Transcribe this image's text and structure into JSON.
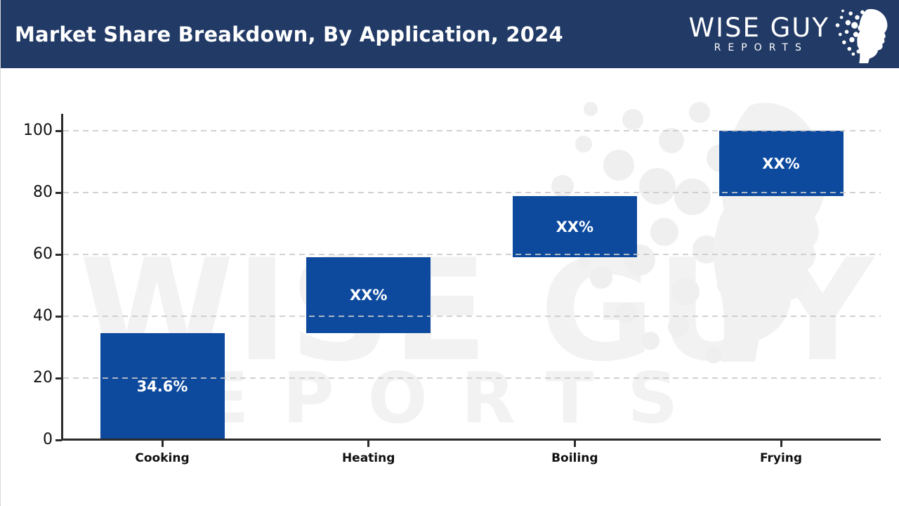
{
  "header": {
    "title": "Market Share Breakdown, By Application, 2024",
    "logo": {
      "line1": "WISE GUY",
      "line2": "REPORTS"
    }
  },
  "watermark": {
    "line1": "WISE GUY",
    "line2": "REPORTS"
  },
  "colors": {
    "header_bg": "#223a66",
    "bar": "#0d4a9e",
    "axis": "#2b2b2b",
    "grid": "#c9c9c9",
    "watermark": "#f2f2f2"
  },
  "chart_data": {
    "type": "bar",
    "subtype": "waterfall",
    "title": "Market Share Breakdown, By Application, 2024",
    "categories": [
      "Cooking",
      "Heating",
      "Boiling",
      "Frying"
    ],
    "segments": [
      {
        "category": "Cooking",
        "start": 0,
        "end": 34.6,
        "label": "34.6%"
      },
      {
        "category": "Heating",
        "start": 34.6,
        "end": 59,
        "label": "XX%"
      },
      {
        "category": "Boiling",
        "start": 59,
        "end": 78.8,
        "label": "XX%"
      },
      {
        "category": "Frying",
        "start": 78.8,
        "end": 100,
        "label": "XX%"
      }
    ],
    "xlabel": "",
    "ylabel": "",
    "ylim": [
      0,
      100
    ],
    "yticks": [
      0,
      20,
      40,
      60,
      80,
      100
    ],
    "grid": "horizontal-dashed",
    "legend": "none",
    "bar_color": "#0d4a9e",
    "bar_label_color": "#ffffff"
  }
}
